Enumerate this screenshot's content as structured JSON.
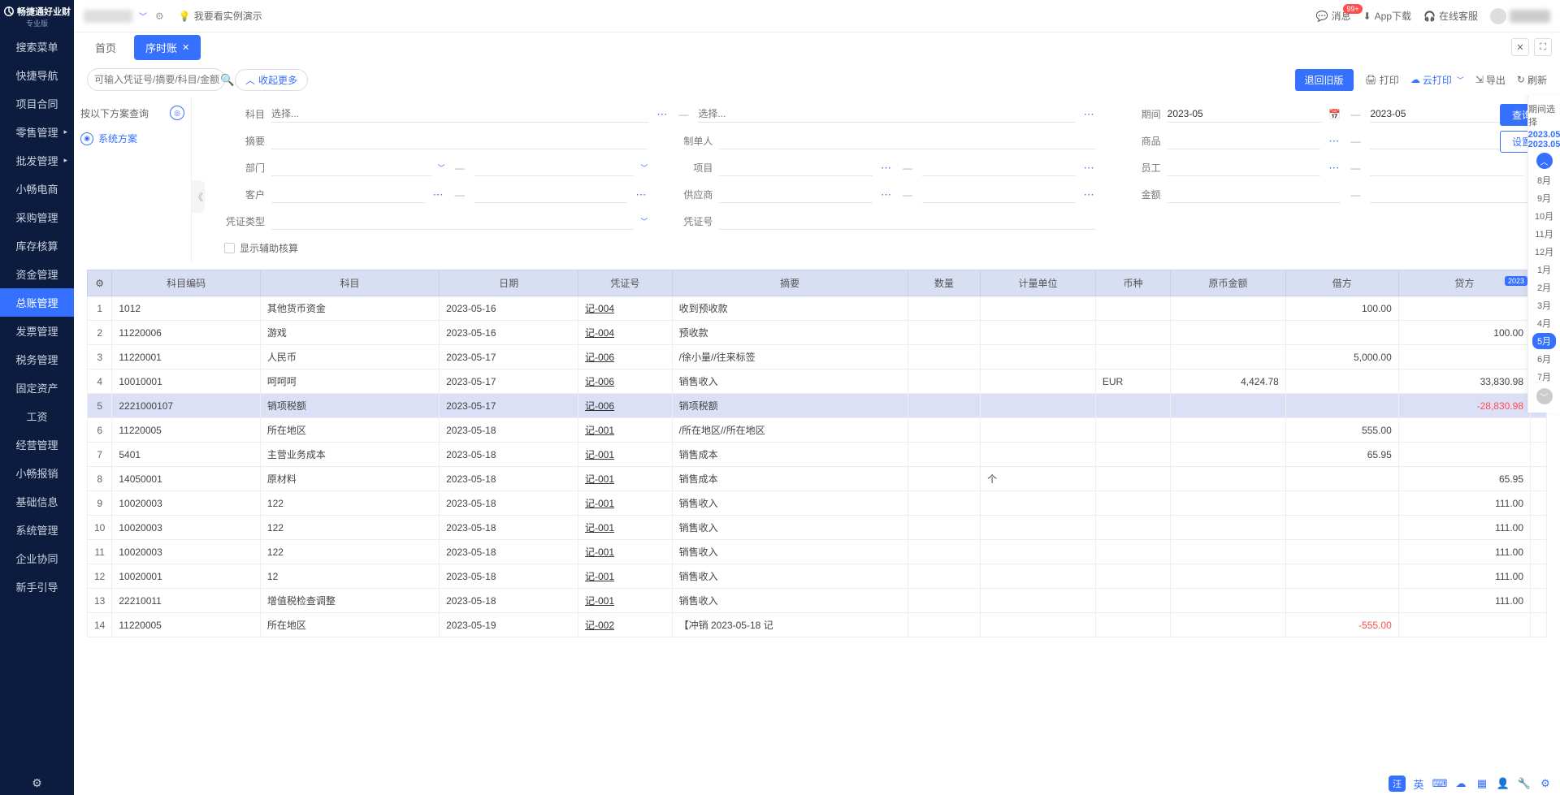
{
  "brand": {
    "name": "畅捷通好业财",
    "edition": "专业版"
  },
  "sidebar": {
    "items": [
      {
        "label": "搜索菜单",
        "expandable": false
      },
      {
        "label": "快捷导航",
        "expandable": false
      },
      {
        "label": "项目合同",
        "expandable": false
      },
      {
        "label": "零售管理",
        "expandable": true
      },
      {
        "label": "批发管理",
        "expandable": true
      },
      {
        "label": "小畅电商",
        "expandable": false
      },
      {
        "label": "采购管理",
        "expandable": false
      },
      {
        "label": "库存核算",
        "expandable": false
      },
      {
        "label": "资金管理",
        "expandable": false
      },
      {
        "label": "总账管理",
        "expandable": false,
        "active": true
      },
      {
        "label": "发票管理",
        "expandable": false
      },
      {
        "label": "税务管理",
        "expandable": false
      },
      {
        "label": "固定资产",
        "expandable": false
      },
      {
        "label": "工资",
        "expandable": false
      },
      {
        "label": "经营管理",
        "expandable": false
      },
      {
        "label": "小畅报销",
        "expandable": false
      },
      {
        "label": "基础信息",
        "expandable": false
      },
      {
        "label": "系统管理",
        "expandable": false
      },
      {
        "label": "企业协同",
        "expandable": false
      },
      {
        "label": "新手引导",
        "expandable": false
      }
    ]
  },
  "topbar": {
    "demo_link": "我要看实例演示",
    "messages": "消息",
    "message_badge": "99+",
    "app_download": "App下载",
    "support": "在线客服"
  },
  "tabs": {
    "home": "首页",
    "active": "序时账"
  },
  "toolbar": {
    "search_placeholder": "可输入凭证号/摘要/科目/金额",
    "collapse": "收起更多",
    "return_old": "退回旧版",
    "print": "打印",
    "cloud_print": "云打印",
    "export": "导出",
    "refresh": "刷新"
  },
  "scheme": {
    "header": "按以下方案查询",
    "system": "系统方案"
  },
  "filters": {
    "subject": {
      "label": "科目",
      "placeholder": "选择..."
    },
    "period": {
      "label": "期间",
      "from": "2023-05",
      "to": "2023-05"
    },
    "summary": {
      "label": "摘要"
    },
    "creator": {
      "label": "制单人"
    },
    "commodity": {
      "label": "商品"
    },
    "department": {
      "label": "部门"
    },
    "project": {
      "label": "项目"
    },
    "employee": {
      "label": "员工"
    },
    "customer": {
      "label": "客户"
    },
    "supplier": {
      "label": "供应商"
    },
    "amount": {
      "label": "金额"
    },
    "voucher_type": {
      "label": "凭证类型"
    },
    "voucher_no": {
      "label": "凭证号"
    },
    "show_aux": "显示辅助核算",
    "query": "查询",
    "settings": "设置"
  },
  "table": {
    "columns": [
      "",
      "科目编码",
      "科目",
      "日期",
      "凭证号",
      "摘要",
      "数量",
      "计量单位",
      "币种",
      "原币金额",
      "借方",
      "贷方"
    ],
    "rows": [
      {
        "n": "1",
        "code": "1012",
        "subject": "其他货币资金",
        "date": "2023-05-16",
        "voucher": "记-004",
        "summary": "收到预收款",
        "qty": "",
        "unit": "",
        "currency": "",
        "orig": "",
        "debit": "100.00",
        "credit": ""
      },
      {
        "n": "2",
        "code": "11220006",
        "subject": "游戏",
        "date": "2023-05-16",
        "voucher": "记-004",
        "summary": "预收款",
        "qty": "",
        "unit": "",
        "currency": "",
        "orig": "",
        "debit": "",
        "credit": "100.00"
      },
      {
        "n": "3",
        "code": "11220001",
        "subject": "人民币",
        "date": "2023-05-17",
        "voucher": "记-006",
        "summary": "/徐小量//往来标签",
        "qty": "",
        "unit": "",
        "currency": "",
        "orig": "",
        "debit": "5,000.00",
        "credit": ""
      },
      {
        "n": "4",
        "code": "10010001",
        "subject": "呵呵呵",
        "date": "2023-05-17",
        "voucher": "记-006",
        "summary": "销售收入",
        "qty": "",
        "unit": "",
        "currency": "EUR",
        "orig": "4,424.78",
        "debit": "",
        "credit": "33,830.98"
      },
      {
        "n": "5",
        "code": "2221000107",
        "subject": "销项税额",
        "date": "2023-05-17",
        "voucher": "记-006",
        "summary": "销项税额",
        "qty": "",
        "unit": "",
        "currency": "",
        "orig": "",
        "debit": "",
        "credit": "-28,830.98",
        "highlighted": true,
        "neg_credit": true
      },
      {
        "n": "6",
        "code": "11220005",
        "subject": "所在地区",
        "date": "2023-05-18",
        "voucher": "记-001",
        "summary": "/所在地区//所在地区",
        "qty": "",
        "unit": "",
        "currency": "",
        "orig": "",
        "debit": "555.00",
        "credit": ""
      },
      {
        "n": "7",
        "code": "5401",
        "subject": "主营业务成本",
        "date": "2023-05-18",
        "voucher": "记-001",
        "summary": "销售成本",
        "qty": "",
        "unit": "",
        "currency": "",
        "orig": "",
        "debit": "65.95",
        "credit": ""
      },
      {
        "n": "8",
        "code": "14050001",
        "subject": "原材料",
        "date": "2023-05-18",
        "voucher": "记-001",
        "summary": "销售成本",
        "qty": "",
        "unit": "个",
        "currency": "",
        "orig": "",
        "debit": "",
        "credit": "65.95"
      },
      {
        "n": "9",
        "code": "10020003",
        "subject": "122",
        "date": "2023-05-18",
        "voucher": "记-001",
        "summary": "销售收入",
        "qty": "",
        "unit": "",
        "currency": "",
        "orig": "",
        "debit": "",
        "credit": "111.00"
      },
      {
        "n": "10",
        "code": "10020003",
        "subject": "122",
        "date": "2023-05-18",
        "voucher": "记-001",
        "summary": "销售收入",
        "qty": "",
        "unit": "",
        "currency": "",
        "orig": "",
        "debit": "",
        "credit": "111.00"
      },
      {
        "n": "11",
        "code": "10020003",
        "subject": "122",
        "date": "2023-05-18",
        "voucher": "记-001",
        "summary": "销售收入",
        "qty": "",
        "unit": "",
        "currency": "",
        "orig": "",
        "debit": "",
        "credit": "111.00"
      },
      {
        "n": "12",
        "code": "10020001",
        "subject": "12",
        "date": "2023-05-18",
        "voucher": "记-001",
        "summary": "销售收入",
        "qty": "",
        "unit": "",
        "currency": "",
        "orig": "",
        "debit": "",
        "credit": "111.00"
      },
      {
        "n": "13",
        "code": "22210011",
        "subject": "增值税检查调整",
        "date": "2023-05-18",
        "voucher": "记-001",
        "summary": "销售收入",
        "qty": "",
        "unit": "",
        "currency": "",
        "orig": "",
        "debit": "",
        "credit": "111.00"
      },
      {
        "n": "14",
        "code": "11220005",
        "subject": "所在地区",
        "date": "2023-05-19",
        "voucher": "记-002",
        "summary": "【冲销 2023-05-18 记",
        "qty": "",
        "unit": "",
        "currency": "",
        "orig": "",
        "debit": "-555.00",
        "credit": "",
        "neg_debit": true
      }
    ]
  },
  "period_panel": {
    "header": "期间选择",
    "from": "2023.05",
    "to": "2023.05",
    "year_tag": "2023",
    "months": [
      "8月",
      "9月",
      "10月",
      "11月",
      "12月",
      "1月",
      "2月",
      "3月",
      "4月",
      "5月",
      "6月",
      "7月"
    ],
    "active_index": 9
  },
  "colors": {
    "primary": "#3670ff",
    "sidebar_bg": "#0b1c3e",
    "table_header_bg": "#d8dff2",
    "row_highlight": "#dbe0f7",
    "negative": "#ff4d4f"
  }
}
